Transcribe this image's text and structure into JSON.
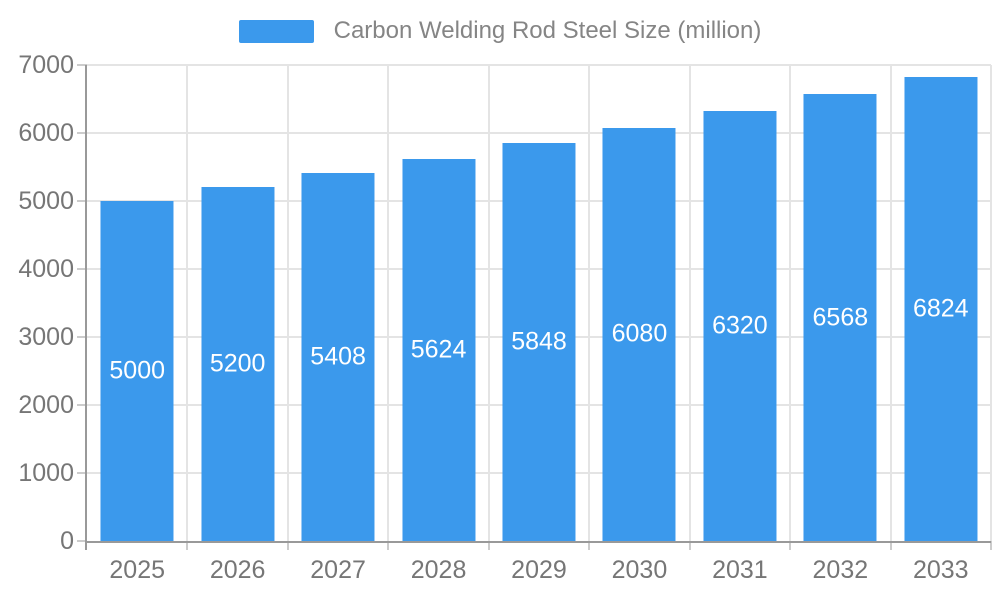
{
  "legend": {
    "label": "Carbon Welding Rod Steel Size (million)"
  },
  "chart_data": {
    "type": "bar",
    "title": "",
    "categories": [
      "2025",
      "2026",
      "2027",
      "2028",
      "2029",
      "2030",
      "2031",
      "2032",
      "2033"
    ],
    "series": [
      {
        "name": "Carbon Welding Rod Steel Size (million)",
        "values": [
          5000,
          5200,
          5408,
          5624,
          5848,
          6080,
          6320,
          6568,
          6824
        ]
      }
    ],
    "xlabel": "",
    "ylabel": "",
    "ylim": [
      0,
      7000
    ],
    "ytick_interval": 1000,
    "yticks": [
      0,
      1000,
      2000,
      3000,
      4000,
      5000,
      6000,
      7000
    ],
    "ytick_labels": [
      "0",
      "1000",
      "2000",
      "3000",
      "4000",
      "5000",
      "6000",
      "7000"
    ],
    "grid": true,
    "legend_position": "top",
    "bar_color": "#3B99EC",
    "bar_label_color": "#ffffff",
    "axis_label_color": "#767676",
    "legend_text_color": "#858585",
    "grid_color": "#E4E4E4",
    "tick_color": "#CCCCCC",
    "axis_line_color": "#999999"
  }
}
